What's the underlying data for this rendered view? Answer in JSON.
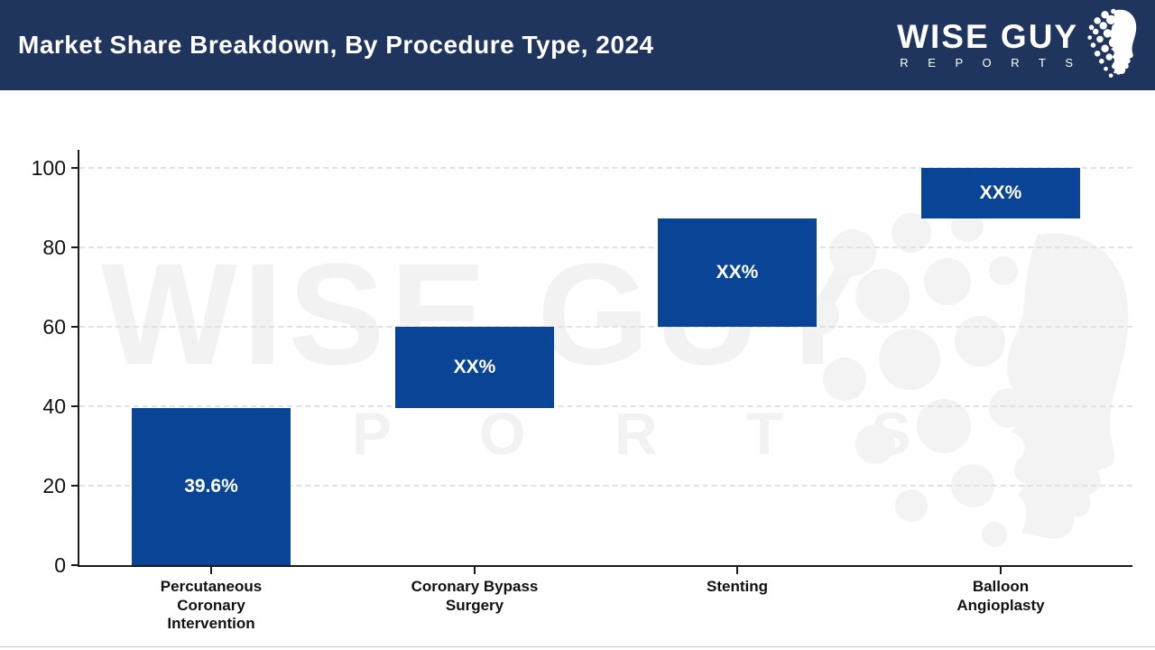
{
  "header": {
    "title": "Market Share Breakdown, By Procedure Type, 2024",
    "logo": {
      "name": "WISE GUY",
      "subtitle": "R E P O R T S"
    }
  },
  "watermark": {
    "line1": "WISE GUY",
    "line2": "P O R T S"
  },
  "chart_data": {
    "type": "bar",
    "subtype": "waterfall",
    "title": "Market Share Breakdown, By Procedure Type, 2024",
    "categories": [
      [
        "Percutaneous",
        "Coronary",
        "Intervention"
      ],
      [
        "Coronary Bypass",
        "Surgery"
      ],
      [
        "Stenting"
      ],
      [
        "Balloon",
        "Angioplasty"
      ]
    ],
    "segments": [
      {
        "category": "Percutaneous Coronary Intervention",
        "start": 0,
        "end": 39.6,
        "label": "39.6%"
      },
      {
        "category": "Coronary Bypass Surgery",
        "start": 39.6,
        "end": 60,
        "label": "XX%"
      },
      {
        "category": "Stenting",
        "start": 60,
        "end": 87.3,
        "label": "XX%"
      },
      {
        "category": "Balloon Angioplasty",
        "start": 87.3,
        "end": 100,
        "label": "XX%"
      }
    ],
    "ylim": [
      0,
      100
    ],
    "yticks": [
      0,
      20,
      40,
      60,
      80,
      100
    ],
    "xlabel": "",
    "ylabel": "",
    "grid": "horizontal-dashed",
    "legend": "none",
    "colors": {
      "bar": "#0a4496",
      "grid": "#e2e2e2",
      "axis": "#1a1a1a",
      "bar_label_text": "#ffffff"
    }
  },
  "colors": {
    "header_bg": "#20355e",
    "header_text": "#ffffff",
    "body_bg": "#ffffff",
    "watermark": "#f2f2f2"
  }
}
